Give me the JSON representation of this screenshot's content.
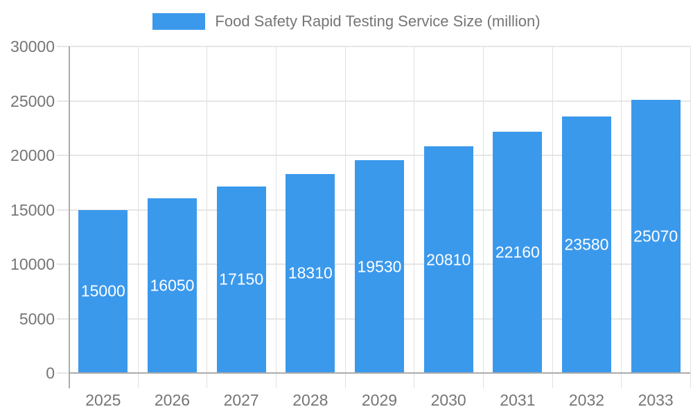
{
  "legend": {
    "label": "Food Safety Rapid Testing Service Size (million)"
  },
  "chart_data": {
    "type": "bar",
    "title": "Food Safety Rapid Testing Service Size (million)",
    "categories": [
      "2025",
      "2026",
      "2027",
      "2028",
      "2029",
      "2030",
      "2031",
      "2032",
      "2033"
    ],
    "values": [
      15000,
      16050,
      17150,
      18310,
      19530,
      20810,
      22160,
      23580,
      25070
    ],
    "xlabel": "",
    "ylabel": "",
    "ylim": [
      0,
      30000
    ],
    "yticks": [
      0,
      5000,
      10000,
      15000,
      20000,
      25000,
      30000
    ],
    "grid": true,
    "legend_position": "top",
    "bar_label_position": "inside-center"
  },
  "colors": {
    "bar": "#3B99EC",
    "bar_label_text": "#FFFFFF",
    "axis_text": "#757575",
    "legend_text": "#757575",
    "grid_line": "#E6E6E6",
    "grid_line_vertical": "#E0E0E0",
    "axis_line": "#ABABAB",
    "background": "#FFFFFF"
  }
}
